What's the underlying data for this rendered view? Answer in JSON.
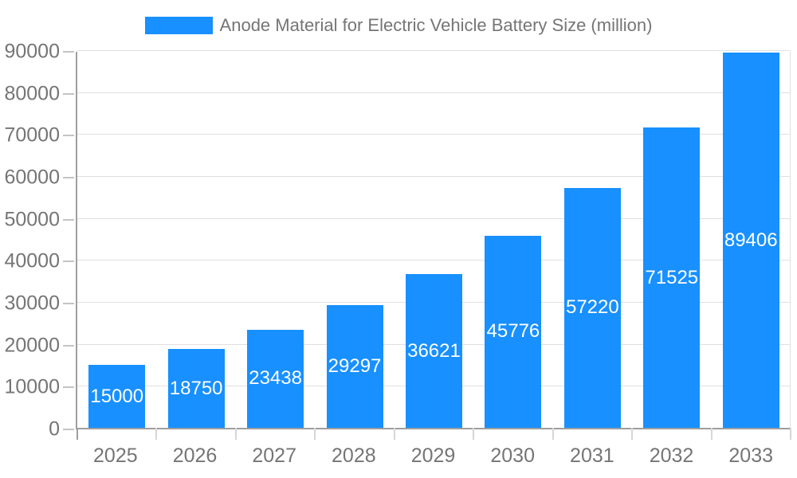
{
  "legend": {
    "label": "Anode Material for Electric Vehicle Battery Size (million)",
    "swatch_color": "#1890ff",
    "position": "top"
  },
  "chart_data": {
    "type": "bar",
    "title": "Anode Material for Electric Vehicle Battery Size (million)",
    "series_name": "Anode Material for Electric Vehicle Battery Size (million)",
    "categories": [
      "2025",
      "2026",
      "2027",
      "2028",
      "2029",
      "2030",
      "2031",
      "2032",
      "2033"
    ],
    "values": [
      15000,
      18750,
      23438,
      29297,
      36621,
      45776,
      57220,
      71525,
      89406
    ],
    "bar_value_labels": [
      "15000",
      "18750",
      "23438",
      "29297",
      "36621",
      "45776",
      "57220",
      "71525",
      "89406"
    ],
    "xlabel": "",
    "ylabel": "",
    "ylim": [
      0,
      90000
    ],
    "ytick_interval": 10000,
    "yticks": [
      0,
      10000,
      20000,
      30000,
      40000,
      50000,
      60000,
      70000,
      80000,
      90000
    ],
    "grid": true,
    "legend_position": "top",
    "value_labels_inside_bars": true,
    "colors": {
      "bar": "#1890ff",
      "bar_label_text": "#ffffff",
      "axis_text": "#757575",
      "axis_line": "#9e9e9e",
      "gridline": "#e0e0e0",
      "background": "#ffffff"
    }
  }
}
